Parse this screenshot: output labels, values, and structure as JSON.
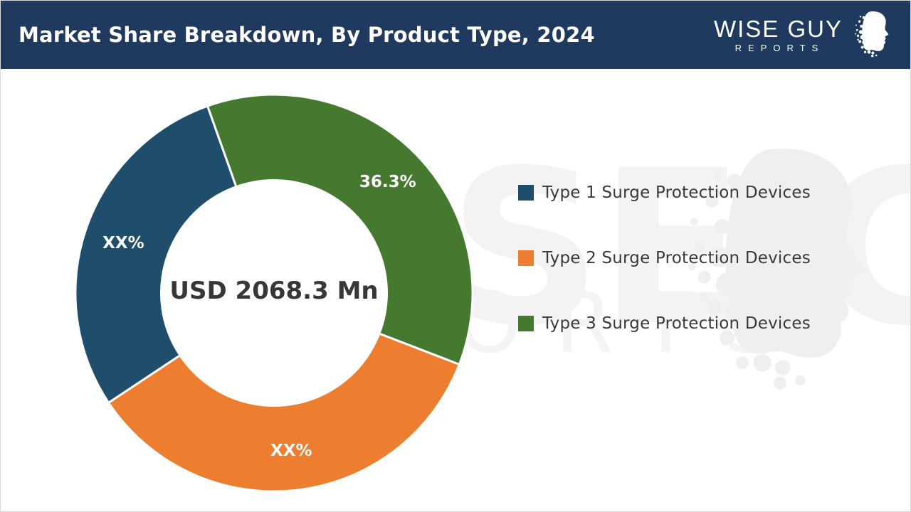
{
  "header": {
    "title": "Market Share Breakdown, By Product Type, 2024",
    "logo": {
      "name": "WISE GUY",
      "tagline": "REPORTS"
    }
  },
  "watermark": {
    "line1": "WISE GUY",
    "line2": "REPORTS"
  },
  "chart_data": {
    "type": "pie",
    "variant": "donut",
    "title": "Market Share Breakdown, By Product Type, 2024",
    "center_label": "USD 2068.3 Mn",
    "legend_position": "right",
    "start_angle_deg": 236.4,
    "draw_order": [
      0,
      2,
      1
    ],
    "series": [
      {
        "name": "Type 1 Surge Protection Devices",
        "label": "XX%",
        "value_pct": 28.9,
        "color": "#1f4e6d"
      },
      {
        "name": "Type 2 Surge Protection Devices",
        "label": "XX%",
        "value_pct": 34.8,
        "color": "#ed7d2f"
      },
      {
        "name": "Type 3 Surge Protection Devices",
        "label": "36.3%",
        "value_pct": 36.3,
        "color": "#45792f"
      }
    ]
  },
  "colors": {
    "header_bg": "#20395f",
    "slice_gap": "#ffffff",
    "center_text": "#373737",
    "legend_text": "#3a3a3a",
    "watermark": "#f3f3f3",
    "border": "#d9d9d9"
  }
}
